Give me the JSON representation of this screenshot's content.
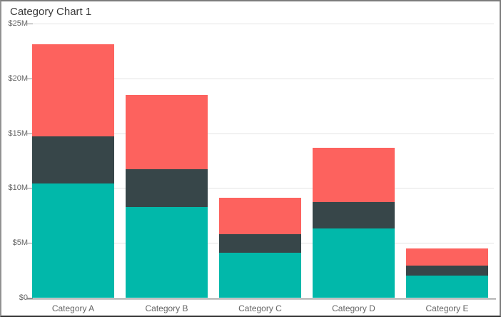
{
  "window": {
    "title": "Category Chart 1"
  },
  "chart_data": {
    "type": "bar",
    "stacked": true,
    "title": "Category Chart 1",
    "categories": [
      "Category A",
      "Category B",
      "Category C",
      "Category D",
      "Category E"
    ],
    "series": [
      {
        "color": "#01b8aa",
        "position": "bottom",
        "values": [
          10.4,
          8.3,
          4.1,
          6.3,
          2.0
        ]
      },
      {
        "color": "#374649",
        "position": "middle",
        "values": [
          4.3,
          3.4,
          1.7,
          2.4,
          0.9
        ]
      },
      {
        "color": "#fd625e",
        "position": "top",
        "values": [
          8.4,
          6.8,
          3.3,
          5.0,
          1.6
        ]
      }
    ],
    "totals": [
      23.1,
      18.5,
      9.1,
      13.7,
      4.5
    ],
    "xlabel": "",
    "ylabel": "",
    "ylim": [
      0,
      25
    ],
    "ytick_step": 5,
    "ytick_labels": [
      "$0",
      "$5M",
      "$10M",
      "$15M",
      "$20M",
      "$25M"
    ],
    "value_unit": "millions USD",
    "grid": true,
    "legend_position": "none"
  },
  "colors": {
    "series_teal": "#01b8aa",
    "series_dark": "#374649",
    "series_red": "#fd625e",
    "gridline": "#e3e3e3",
    "axis_line": "#969696",
    "axis_text": "#656565",
    "title_text": "#3a3a3a"
  }
}
